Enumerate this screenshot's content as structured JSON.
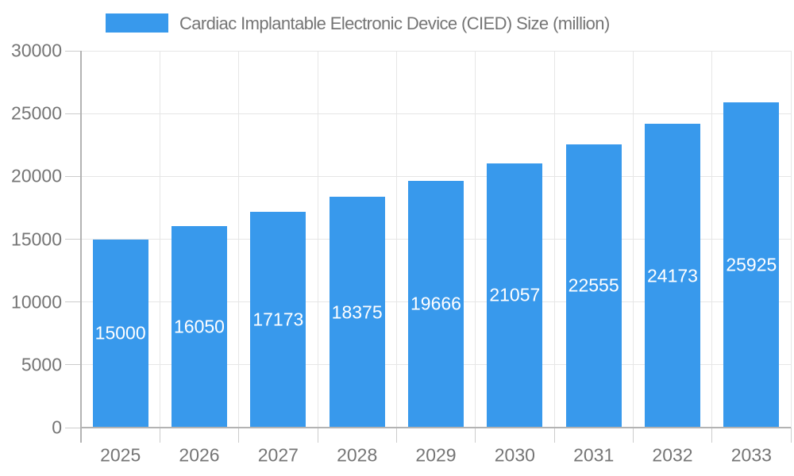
{
  "legend": {
    "label": "Cardiac Implantable Electronic Device (CIED) Size (million)"
  },
  "colors": {
    "bar": "#3899EC",
    "bar_label_text": "#ffffff",
    "axis_text": "#757575",
    "gridline": "#e6e6e6",
    "axis_line": "#b3b3b3",
    "tick": "#cccccc",
    "background": "#ffffff"
  },
  "chart_data": {
    "type": "bar",
    "title": "Cardiac Implantable Electronic Device (CIED) Size (million)",
    "categories": [
      "2025",
      "2026",
      "2027",
      "2028",
      "2029",
      "2030",
      "2031",
      "2032",
      "2033"
    ],
    "values": [
      15000,
      16050,
      17173,
      18375,
      19666,
      21057,
      22555,
      24173,
      25925
    ],
    "xlabel": "",
    "ylabel": "",
    "ylim": [
      0,
      30000
    ],
    "ytick_step": 5000,
    "ytick_labels": [
      "0",
      "5000",
      "10000",
      "15000",
      "20000",
      "25000",
      "30000"
    ],
    "grid": true,
    "legend_position": "top",
    "bar_value_labels": "inside-center"
  }
}
